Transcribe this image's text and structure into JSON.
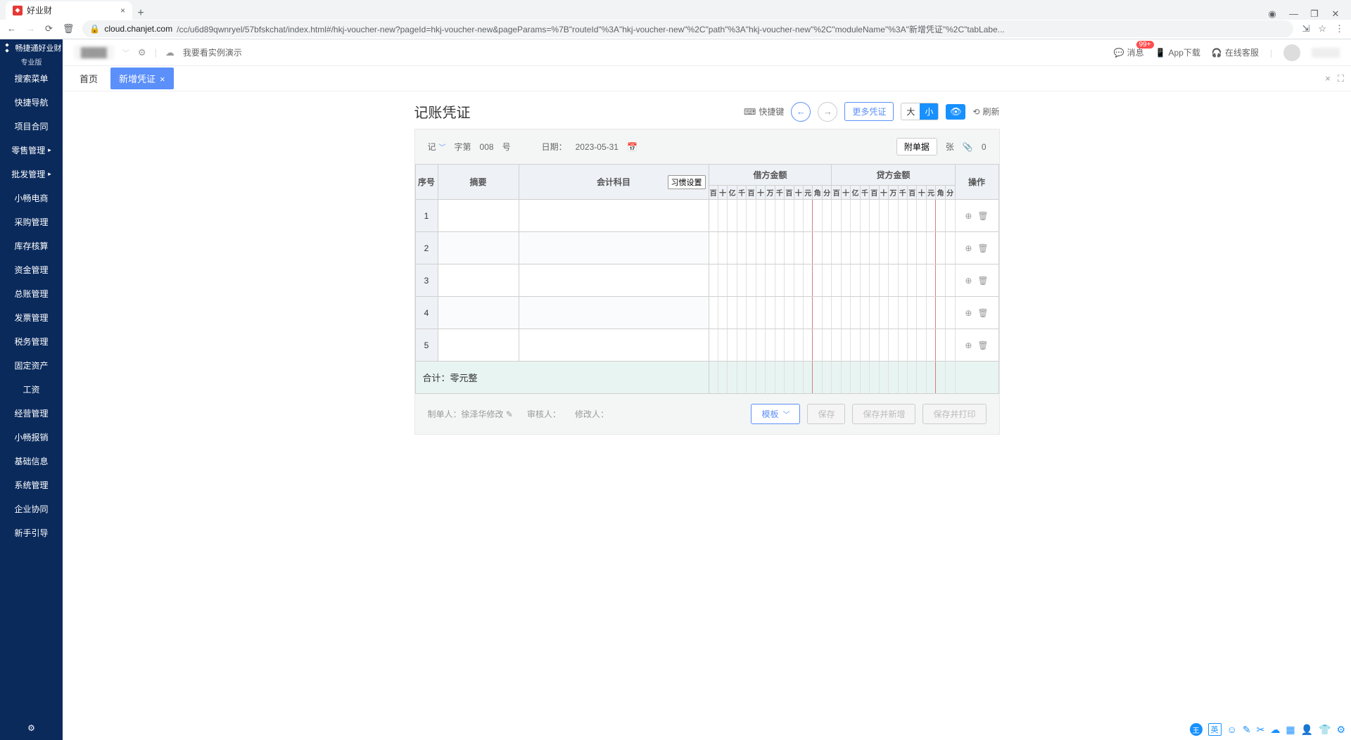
{
  "browser": {
    "tab_title": "好业财",
    "url_host": "cloud.chanjet.com",
    "url_rest": "/cc/u6d89qwnryel/57bfskchat/index.html#/hkj-voucher-new?pageId=hkj-voucher-new&pageParams=%7B\"routeId\"%3A\"hkj-voucher-new\"%2C\"path\"%3A\"hkj-voucher-new\"%2C\"moduleName\"%3A\"新增凭证\"%2C\"tabLabe..."
  },
  "sidebar": {
    "brand_top": "畅捷通好业财",
    "brand_sub": "专业版",
    "items": [
      {
        "label": "搜索菜单"
      },
      {
        "label": "快捷导航"
      },
      {
        "label": "项目合同"
      },
      {
        "label": "零售管理",
        "expand": true
      },
      {
        "label": "批发管理",
        "expand": true
      },
      {
        "label": "小畅电商"
      },
      {
        "label": "采购管理"
      },
      {
        "label": "库存核算"
      },
      {
        "label": "资金管理"
      },
      {
        "label": "总账管理"
      },
      {
        "label": "发票管理"
      },
      {
        "label": "税务管理"
      },
      {
        "label": "固定资产"
      },
      {
        "label": "工资"
      },
      {
        "label": "经营管理"
      },
      {
        "label": "小畅报销"
      },
      {
        "label": "基础信息"
      },
      {
        "label": "系统管理"
      },
      {
        "label": "企业协同"
      },
      {
        "label": "新手引导"
      }
    ]
  },
  "topbar": {
    "demo_link": "我要看实例演示",
    "msg": "消息",
    "msg_badge": "99+",
    "app": "App下载",
    "service": "在线客服"
  },
  "tabs": {
    "home": "首页",
    "active": "新增凭证"
  },
  "voucher": {
    "title": "记账凭证",
    "shortcut": "快捷键",
    "more": "更多凭证",
    "size_big": "大",
    "size_small": "小",
    "refresh": "刷新",
    "type_label": "记",
    "zi_label": "字第",
    "number": "008",
    "hao": "号",
    "date_label": "日期：",
    "date": "2023-05-31",
    "attach_btn": "附单据",
    "zhang": "张",
    "attach_count": "0",
    "table": {
      "seq": "序号",
      "summary": "摘要",
      "subject": "会计科目",
      "habit": "习惯设置",
      "debit": "借方金额",
      "credit": "贷方金额",
      "ops": "操作",
      "digits": [
        "百",
        "十",
        "亿",
        "千",
        "百",
        "十",
        "万",
        "千",
        "百",
        "十",
        "元",
        "角",
        "分"
      ],
      "rows": [
        1,
        2,
        3,
        4,
        5
      ],
      "total_label": "合计：零元整"
    },
    "footer": {
      "maker_label": "制单人：",
      "maker": "徐泽华修改",
      "auditor_label": "审核人：",
      "modifier_label": "修改人：",
      "template": "模板",
      "save": "保存",
      "save_new": "保存并新增",
      "save_print": "保存并打印"
    }
  },
  "ime": "英"
}
